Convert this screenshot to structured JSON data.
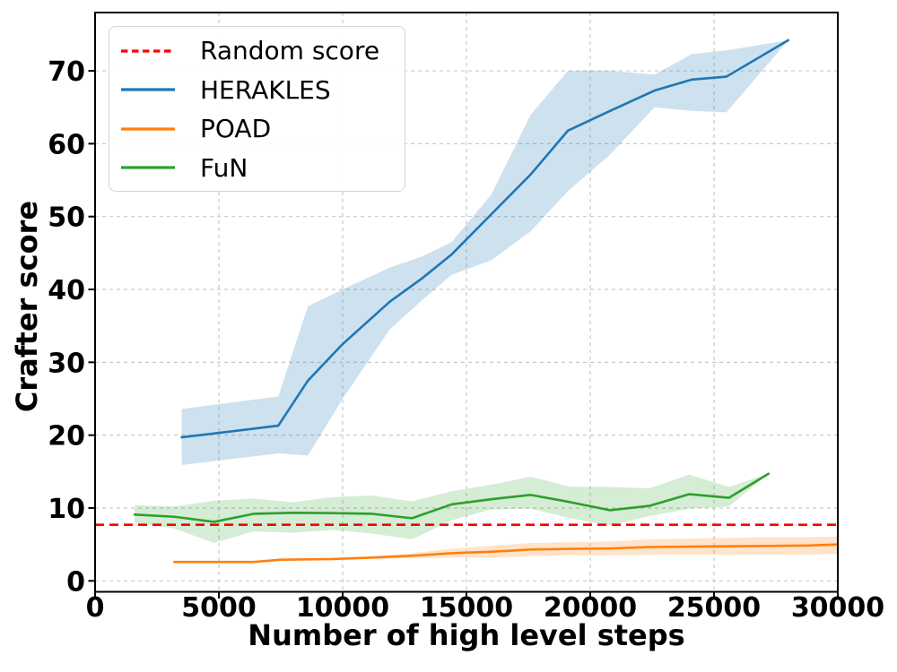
{
  "chart_data": {
    "type": "line",
    "title": "",
    "xlabel": "Number of high level steps",
    "ylabel": "Crafter score",
    "xlim": [
      0,
      30000
    ],
    "ylim": [
      -1.5,
      78
    ],
    "xticks": [
      0,
      5000,
      10000,
      15000,
      20000,
      25000,
      30000
    ],
    "yticks": [
      0,
      10,
      20,
      30,
      40,
      50,
      60,
      70
    ],
    "grid": true,
    "grid_color": "#c9c9c9",
    "legend": {
      "position": "upper-left",
      "entries": [
        {
          "label": "Random score",
          "color": "#ff0000",
          "dashed": true
        },
        {
          "label": "HERAKLES",
          "color": "#1f77b4",
          "dashed": false
        },
        {
          "label": "POAD",
          "color": "#ff7f0e",
          "dashed": false
        },
        {
          "label": "FuN",
          "color": "#2ca02c",
          "dashed": false
        }
      ]
    },
    "baseline": {
      "name": "Random score",
      "value": 7.7,
      "color": "#ff0000",
      "style": "dashed"
    },
    "series": [
      {
        "name": "HERAKLES",
        "color": "#1f77b4",
        "band_color": "rgba(31,119,180,0.22)",
        "x": [
          3500,
          7400,
          8600,
          10000,
          11900,
          13200,
          14400,
          16000,
          17600,
          19100,
          20800,
          22600,
          24100,
          25500,
          28000
        ],
        "y": [
          19.7,
          21.3,
          27.5,
          32.5,
          38.3,
          41.5,
          44.8,
          50.3,
          55.8,
          61.8,
          64.5,
          67.3,
          68.8,
          69.2,
          74.2
        ],
        "band_lower": [
          15.9,
          17.5,
          17.2,
          25.0,
          34.5,
          38.5,
          42.0,
          44.0,
          48.0,
          53.5,
          58.5,
          65.0,
          64.5,
          64.3,
          74.2
        ],
        "band_upper": [
          23.6,
          25.3,
          37.7,
          40.0,
          43.0,
          44.5,
          46.5,
          53.0,
          64.0,
          70.0,
          70.0,
          69.5,
          72.3,
          72.8,
          74.2
        ]
      },
      {
        "name": "POAD",
        "color": "#ff7f0e",
        "band_color": "rgba(255,127,14,0.22)",
        "x": [
          3200,
          4800,
          6400,
          7500,
          9600,
          11200,
          12800,
          14400,
          16000,
          17600,
          19200,
          20800,
          22400,
          24000,
          25600,
          27200,
          28800,
          30000
        ],
        "y": [
          2.6,
          2.6,
          2.6,
          2.9,
          3.0,
          3.2,
          3.45,
          3.8,
          4.0,
          4.3,
          4.4,
          4.45,
          4.65,
          4.7,
          4.75,
          4.8,
          4.85,
          5.0
        ],
        "band_lower": [
          2.6,
          2.6,
          2.6,
          2.9,
          2.9,
          3.0,
          3.1,
          3.2,
          3.2,
          3.4,
          3.5,
          3.5,
          3.6,
          3.6,
          3.6,
          3.6,
          3.6,
          3.7
        ],
        "band_upper": [
          2.6,
          2.6,
          2.6,
          2.9,
          3.1,
          3.4,
          3.8,
          4.4,
          4.8,
          5.2,
          5.3,
          5.4,
          5.7,
          5.8,
          5.9,
          6.0,
          6.0,
          6.1
        ]
      },
      {
        "name": "FuN",
        "color": "#2ca02c",
        "band_color": "rgba(44,160,44,0.20)",
        "x": [
          1600,
          3200,
          4800,
          6400,
          8000,
          9600,
          11200,
          12800,
          14400,
          16000,
          17600,
          19200,
          20800,
          22400,
          24000,
          25600,
          27200
        ],
        "y": [
          9.1,
          8.8,
          8.1,
          9.2,
          9.35,
          9.3,
          9.2,
          8.6,
          10.5,
          11.2,
          11.8,
          10.8,
          9.7,
          10.3,
          11.9,
          11.4,
          14.7
        ],
        "band_lower": [
          7.9,
          7.2,
          5.2,
          6.8,
          6.6,
          7.0,
          6.5,
          5.7,
          8.3,
          9.8,
          9.9,
          8.6,
          7.6,
          8.9,
          9.9,
          10.2,
          14.7
        ],
        "band_upper": [
          10.4,
          10.2,
          11.0,
          11.3,
          10.8,
          11.5,
          11.7,
          10.9,
          12.3,
          13.2,
          14.3,
          12.9,
          12.9,
          12.7,
          14.6,
          12.9,
          14.7
        ]
      }
    ]
  }
}
